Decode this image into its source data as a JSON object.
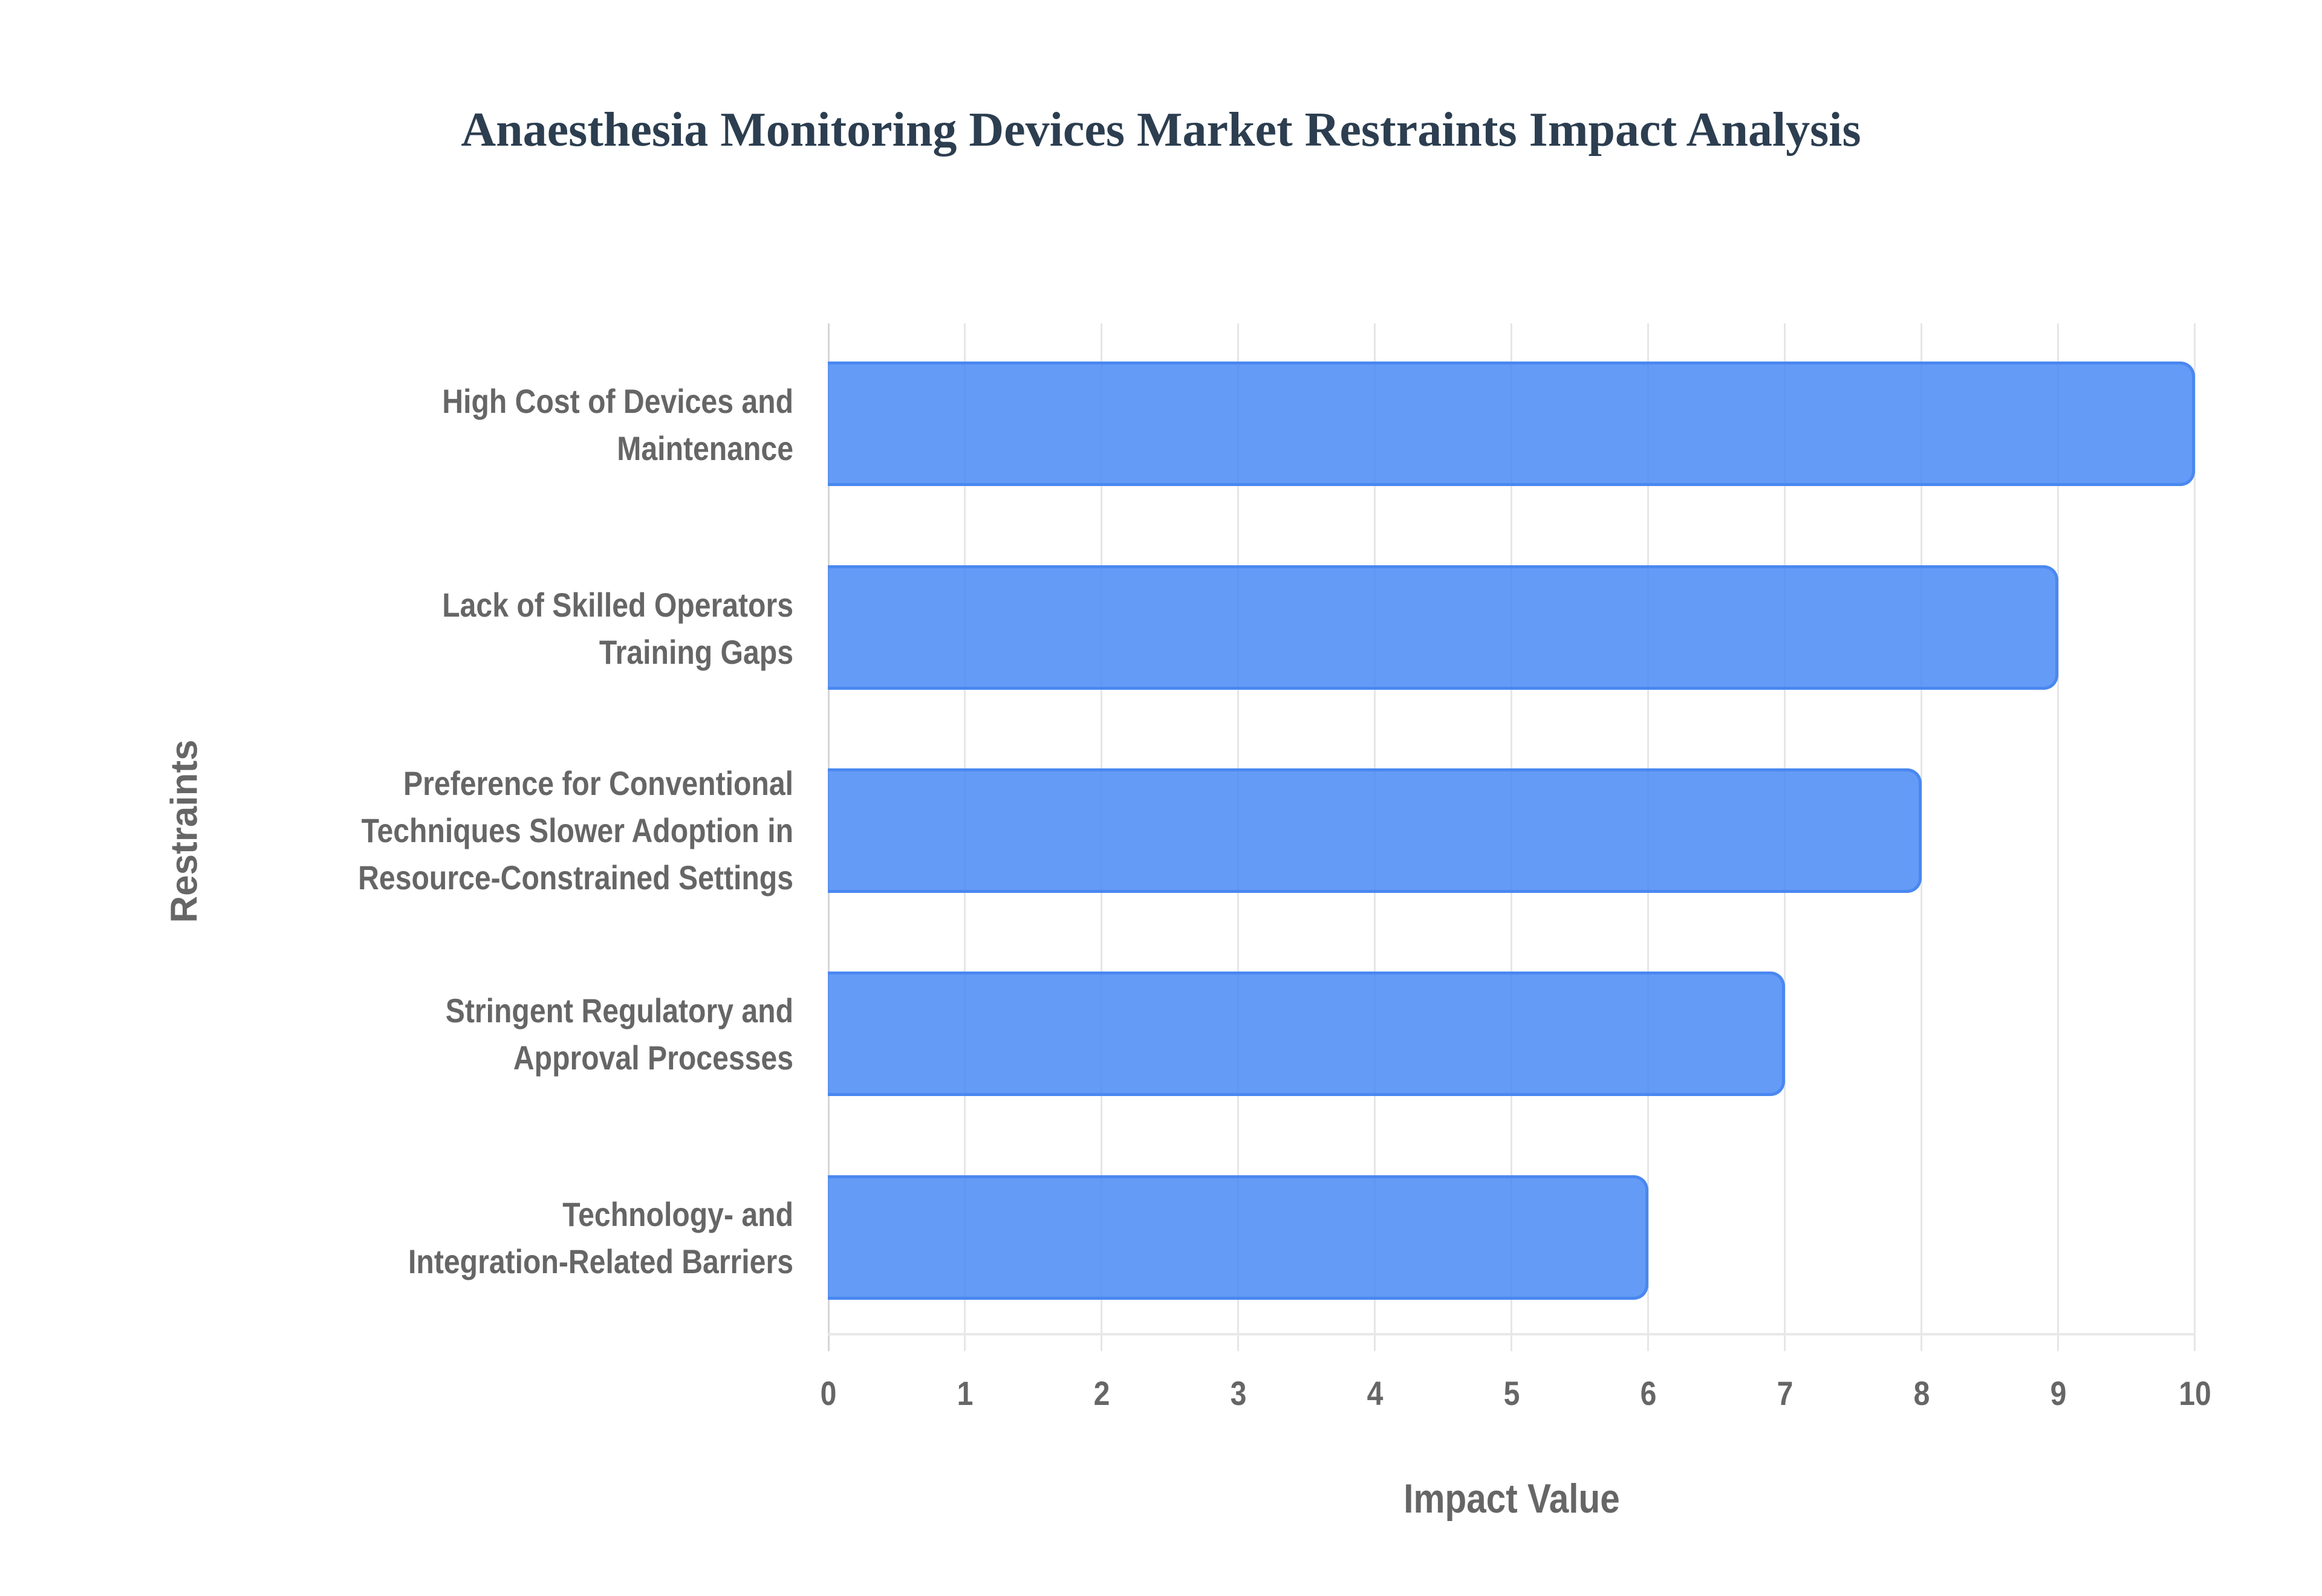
{
  "title": "Anaesthesia Monitoring Devices Market Restraints Impact Analysis",
  "colors": {
    "bar_fill": "#6199F4",
    "bar_border": "#4A88F0",
    "text": "#666666",
    "title": "#2C3E50",
    "grid": "#E6E6E6"
  },
  "axes": {
    "x_title": "Impact Value",
    "y_title": "Restraints",
    "x_ticks": [
      "0",
      "1",
      "2",
      "3",
      "4",
      "5",
      "6",
      "7",
      "8",
      "9",
      "10"
    ]
  },
  "categories": [
    {
      "lines": [
        "High Cost of Devices and",
        "Maintenance"
      ]
    },
    {
      "lines": [
        "Lack of Skilled Operators",
        "Training Gaps"
      ]
    },
    {
      "lines": [
        "Preference for Conventional",
        "Techniques Slower Adoption in",
        "Resource-Constrained Settings"
      ]
    },
    {
      "lines": [
        "Stringent Regulatory and",
        "Approval Processes"
      ]
    },
    {
      "lines": [
        "Technology- and",
        "Integration-Related Barriers"
      ]
    }
  ],
  "chart_data": {
    "type": "bar",
    "orientation": "horizontal",
    "title": "Anaesthesia Monitoring Devices Market Restraints Impact Analysis",
    "categories": [
      "High Cost of Devices and Maintenance",
      "Lack of Skilled Operators Training Gaps",
      "Preference for Conventional Techniques Slower Adoption in Resource-Constrained Settings",
      "Stringent Regulatory and Approval Processes",
      "Technology- and Integration-Related Barriers"
    ],
    "values": [
      10,
      9,
      8,
      7,
      6
    ],
    "xlabel": "Impact Value",
    "ylabel": "Restraints",
    "xlim": [
      0,
      10
    ],
    "x_ticks": [
      0,
      1,
      2,
      3,
      4,
      5,
      6,
      7,
      8,
      9,
      10
    ],
    "grid": true,
    "legend": false
  }
}
